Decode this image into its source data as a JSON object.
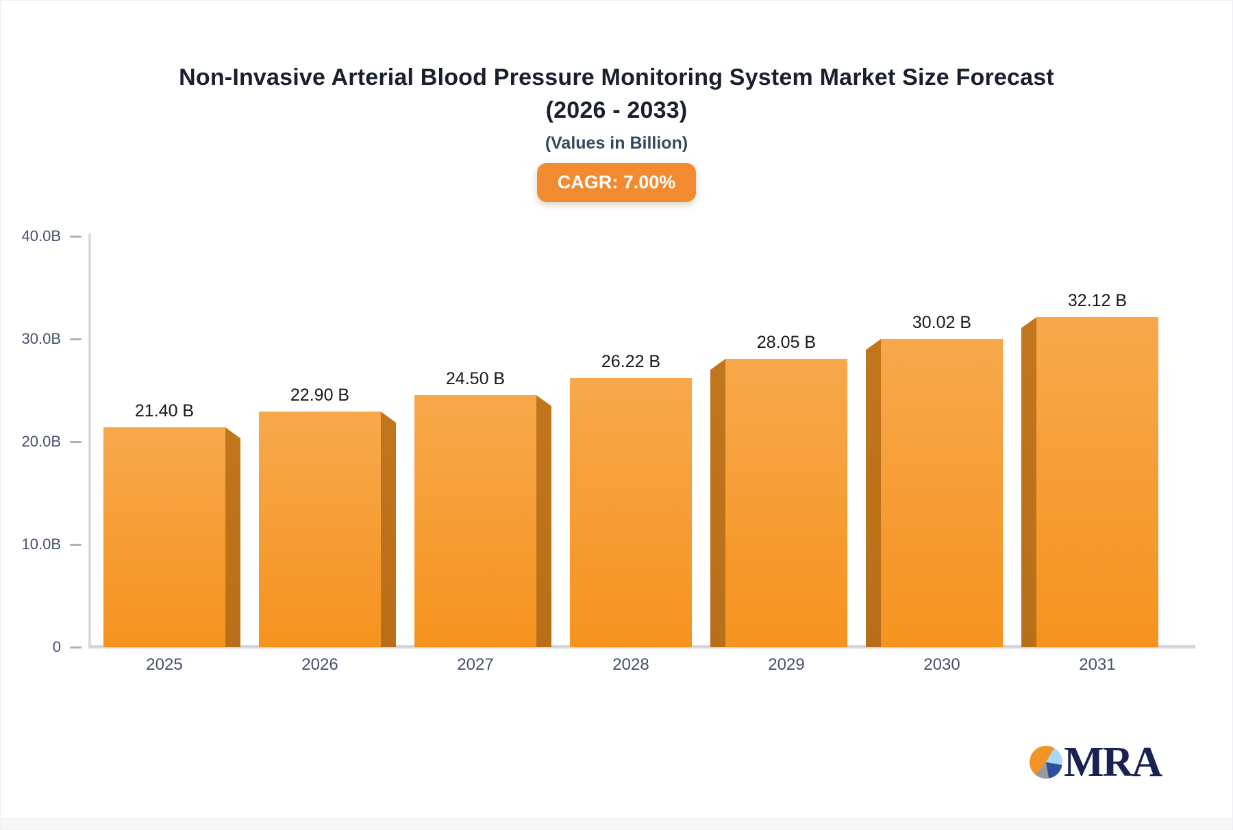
{
  "header": {
    "title_line1": "Non-Invasive Arterial Blood Pressure Monitoring System Market Size Forecast",
    "title_line2": "(2026 - 2033)",
    "subtitle": "(Values in Billion)",
    "cagr_badge": "CAGR: 7.00%"
  },
  "chart_data": {
    "type": "bar",
    "title": "Non-Invasive Arterial Blood Pressure Monitoring System Market Size Forecast (2026 - 2033)",
    "subtitle": "(Values in Billion)",
    "annotation": "CAGR: 7.00%",
    "categories": [
      "2025",
      "2026",
      "2027",
      "2028",
      "2029",
      "2030",
      "2031"
    ],
    "values": [
      21.4,
      22.9,
      24.5,
      26.22,
      28.05,
      30.02,
      32.12
    ],
    "value_labels": [
      "21.40 B",
      "22.90 B",
      "24.50 B",
      "26.22 B",
      "28.05 B",
      "30.02 B",
      "32.12 B"
    ],
    "xlabel": "",
    "ylabel": "",
    "ylim": [
      0,
      40
    ],
    "yticks": [
      {
        "value": 40,
        "label": "40.0B"
      },
      {
        "value": 30,
        "label": "30.0B"
      },
      {
        "value": 20,
        "label": "20.0B"
      },
      {
        "value": 10,
        "label": "10.0B"
      },
      {
        "value": 0,
        "label": "0"
      }
    ],
    "grid": false,
    "legend": false,
    "bar_style": "3d"
  },
  "colors": {
    "bar_top": "#F7A84B",
    "bar_bottom": "#F6931F",
    "bar_side": "#B96F1A",
    "badge_bg": "#F28B30",
    "title_text": "#1A1F2E",
    "subtitle_text": "#35485E",
    "axis_text": "#45506A",
    "logo_navy": "#1B2153",
    "logo_orange": "#F49427",
    "logo_lightblue": "#A8D8F5",
    "logo_blue": "#2C4F9E",
    "logo_gray": "#97999E"
  },
  "logo": {
    "text": "MRA"
  }
}
